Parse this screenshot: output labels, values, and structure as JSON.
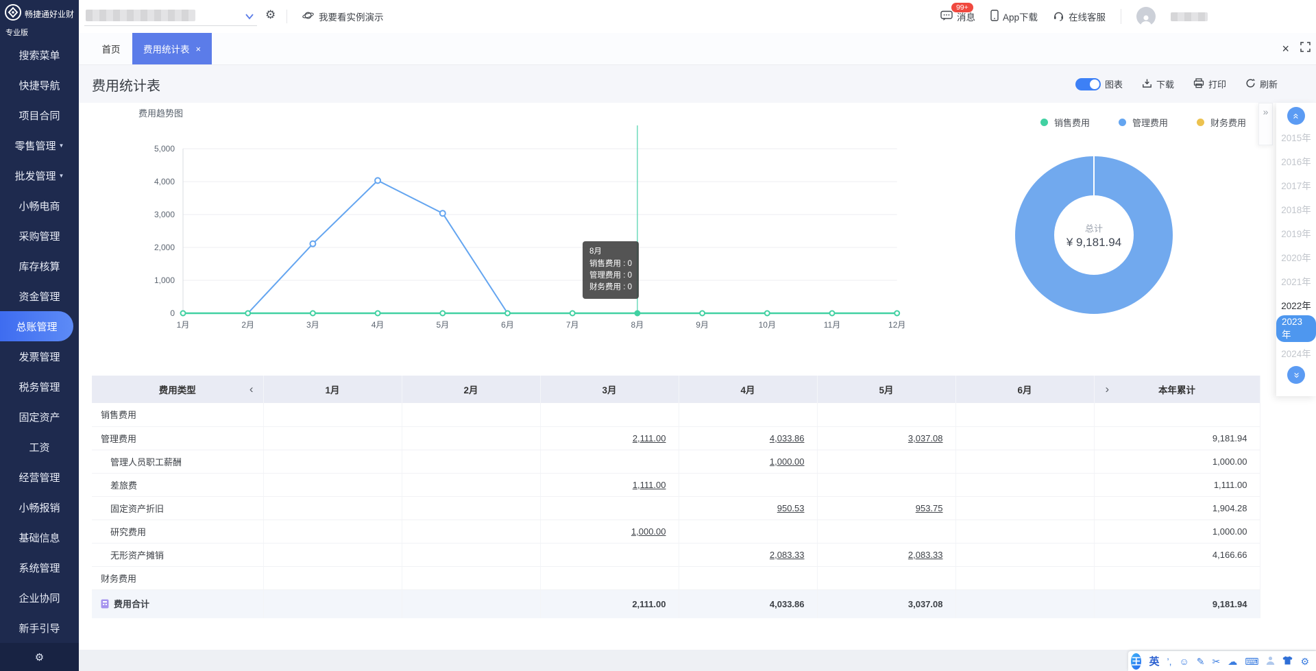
{
  "app": {
    "logo_title": "畅捷通好业财",
    "logo_subtitle": "专业版"
  },
  "topbar": {
    "demo_label": "我要看实例演示",
    "messages_label": "消息",
    "messages_badge": "99+",
    "app_download_label": "App下载",
    "support_label": "在线客服"
  },
  "tabs": [
    {
      "label": "首页",
      "active": false
    },
    {
      "label": "费用统计表",
      "active": true
    }
  ],
  "page": {
    "title": "费用统计表",
    "toolbar": {
      "chart_toggle_label": "图表",
      "download_label": "下载",
      "print_label": "打印",
      "refresh_label": "刷新"
    }
  },
  "sidebar": {
    "items": [
      {
        "label": "搜索菜单"
      },
      {
        "label": "快捷导航"
      },
      {
        "label": "项目合同"
      },
      {
        "label": "零售管理",
        "has_submenu": true
      },
      {
        "label": "批发管理",
        "has_submenu": true
      },
      {
        "label": "小畅电商"
      },
      {
        "label": "采购管理"
      },
      {
        "label": "库存核算"
      },
      {
        "label": "资金管理"
      },
      {
        "label": "总账管理",
        "active": true
      },
      {
        "label": "发票管理"
      },
      {
        "label": "税务管理"
      },
      {
        "label": "固定资产"
      },
      {
        "label": "工资"
      },
      {
        "label": "经营管理"
      },
      {
        "label": "小畅报销"
      },
      {
        "label": "基础信息"
      },
      {
        "label": "系统管理"
      },
      {
        "label": "企业协同"
      },
      {
        "label": "新手引导"
      }
    ]
  },
  "chart_data": [
    {
      "type": "line",
      "title": "费用趋势图",
      "x": [
        "1月",
        "2月",
        "3月",
        "4月",
        "5月",
        "6月",
        "7月",
        "8月",
        "9月",
        "10月",
        "11月",
        "12月"
      ],
      "series": [
        {
          "name": "销售费用",
          "color": "#41d1a2",
          "values": [
            0,
            0,
            0,
            0,
            0,
            0,
            0,
            0,
            0,
            0,
            0,
            0
          ]
        },
        {
          "name": "管理费用",
          "color": "#64a5f0",
          "values": [
            0,
            0,
            2111.0,
            4033.86,
            3037.08,
            0,
            0,
            0,
            0,
            0,
            0,
            0
          ]
        },
        {
          "name": "财务费用",
          "color": "#ecc24f",
          "values": [
            0,
            0,
            0,
            0,
            0,
            0,
            0,
            0,
            0,
            0,
            0,
            0
          ]
        }
      ],
      "ylim": [
        0,
        5000
      ],
      "yticks": [
        "5,000",
        "4,000",
        "3,000",
        "2,000",
        "1,000",
        "0"
      ],
      "grid": true,
      "legend_position": "top-right",
      "active_month_index": 7,
      "tooltip": {
        "title": "8月",
        "lines": [
          "销售费用 : 0",
          "管理费用 : 0",
          "财务费用 : 0"
        ]
      }
    },
    {
      "type": "donut",
      "center_label": "总计",
      "center_value": "¥ 9,181.94",
      "slices": [
        {
          "name": "销售费用",
          "value": 0,
          "color": "#41d1a2"
        },
        {
          "name": "管理费用",
          "value": 9181.94,
          "color": "#71a9ee"
        },
        {
          "name": "财务费用",
          "value": 0,
          "color": "#ecc24f"
        }
      ]
    }
  ],
  "years": {
    "items": [
      {
        "label": "2015年"
      },
      {
        "label": "2016年"
      },
      {
        "label": "2017年"
      },
      {
        "label": "2018年"
      },
      {
        "label": "2019年"
      },
      {
        "label": "2020年"
      },
      {
        "label": "2021年"
      },
      {
        "label": "2022年",
        "emphasis": true
      },
      {
        "label": "2023年",
        "selected": true
      },
      {
        "label": "2024年"
      }
    ]
  },
  "table": {
    "columns": [
      "费用类型",
      "1月",
      "2月",
      "3月",
      "4月",
      "5月",
      "6月",
      "本年累计"
    ],
    "rows": [
      {
        "label": "销售费用",
        "indent": false,
        "cells": [
          "",
          "",
          "",
          "",
          "",
          "",
          ""
        ]
      },
      {
        "label": "管理费用",
        "indent": false,
        "cells": [
          "",
          "",
          "2,111.00",
          "4,033.86",
          "3,037.08",
          "",
          "9,181.94"
        ]
      },
      {
        "label": "管理人员职工薪酬",
        "indent": true,
        "cells": [
          "",
          "",
          "",
          "1,000.00",
          "",
          "",
          "1,000.00"
        ]
      },
      {
        "label": "差旅费",
        "indent": true,
        "cells": [
          "",
          "",
          "1,111.00",
          "",
          "",
          "",
          "1,111.00"
        ]
      },
      {
        "label": "固定资产折旧",
        "indent": true,
        "cells": [
          "",
          "",
          "",
          "950.53",
          "953.75",
          "",
          "1,904.28"
        ]
      },
      {
        "label": "研究费用",
        "indent": true,
        "cells": [
          "",
          "",
          "1,000.00",
          "",
          "",
          "",
          "1,000.00"
        ]
      },
      {
        "label": "无形资产摊销",
        "indent": true,
        "cells": [
          "",
          "",
          "",
          "2,083.33",
          "2,083.33",
          "",
          "4,166.66"
        ]
      },
      {
        "label": "财务费用",
        "indent": false,
        "cells": [
          "",
          "",
          "",
          "",
          "",
          "",
          ""
        ]
      },
      {
        "label": "费用合计",
        "indent": false,
        "total": true,
        "cells": [
          "",
          "",
          "2,111.00",
          "4,033.86",
          "3,037.08",
          "",
          "9,181.94"
        ]
      }
    ]
  },
  "ime": {
    "logo_char": "王",
    "lang_label": "英"
  }
}
